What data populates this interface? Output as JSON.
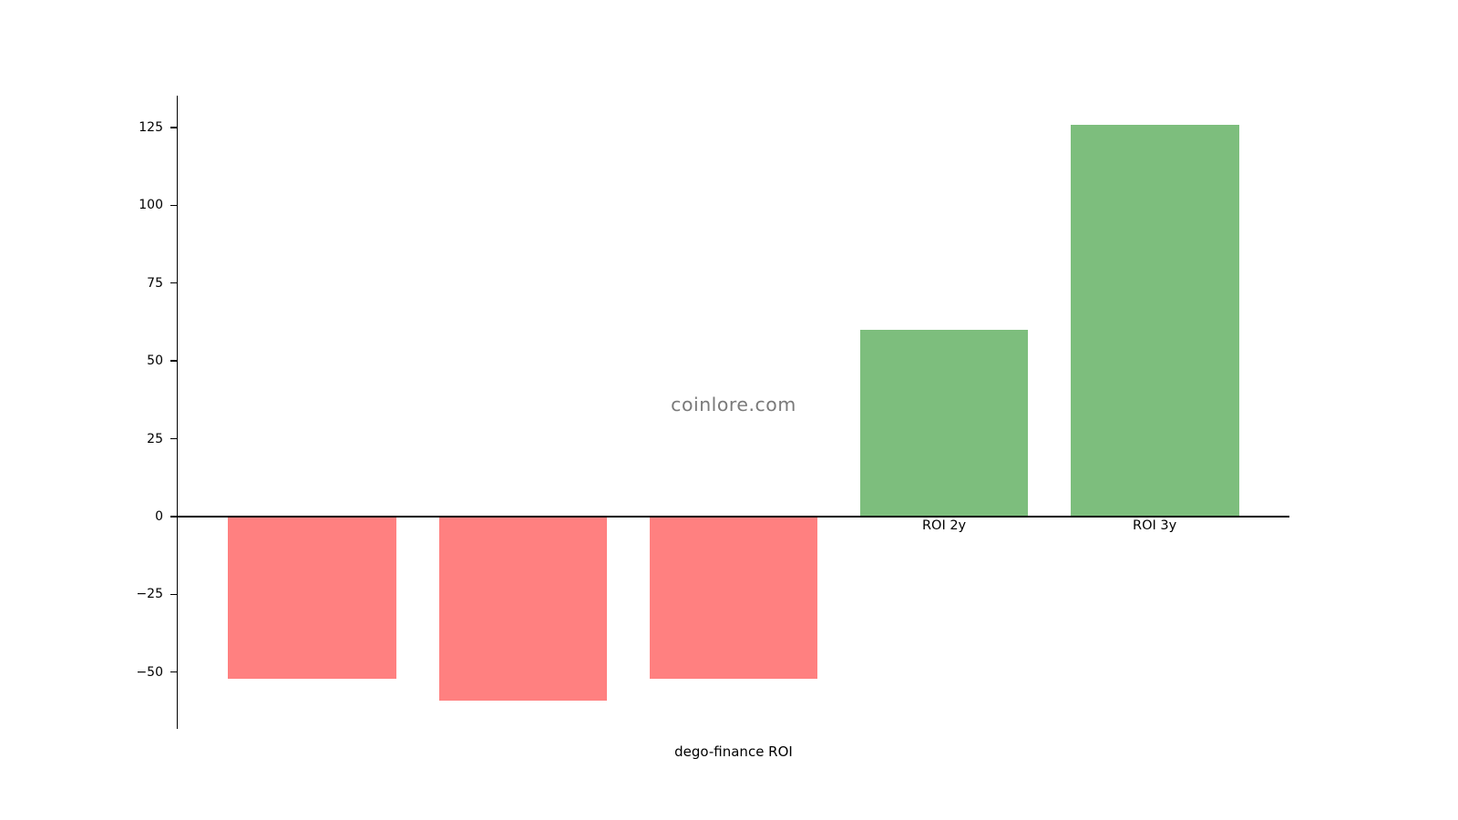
{
  "watermark": "coinlore.com",
  "chart_data": {
    "type": "bar",
    "title": "",
    "xlabel": "dego-finance ROI",
    "ylabel": "",
    "categories": [
      "",
      "",
      "",
      "ROI 2y",
      "ROI 3y"
    ],
    "values": [
      -52,
      -59,
      -52,
      60,
      126
    ],
    "series": [
      {
        "name": "dego-finance ROI",
        "values": [
          -52,
          -59,
          -52,
          60,
          126
        ]
      }
    ],
    "yticks": [
      {
        "value": 125,
        "label": "125"
      },
      {
        "value": 100,
        "label": "100"
      },
      {
        "value": 75,
        "label": "75"
      },
      {
        "value": 50,
        "label": "50"
      },
      {
        "value": 25,
        "label": "25"
      },
      {
        "value": 0,
        "label": "0"
      },
      {
        "value": -25,
        "label": "−25"
      },
      {
        "value": -50,
        "label": "−50"
      }
    ],
    "ylim": [
      -68.25,
      135.25
    ],
    "xlim": [
      -0.64,
      4.64
    ],
    "bar_width": 0.8,
    "grid": false,
    "legend": "none",
    "colors": {
      "positive": "#7dbe7d",
      "negative": "#ff8080",
      "axis": "#000000",
      "tick_text": "#000000",
      "watermark": "#7a7a7a"
    }
  }
}
